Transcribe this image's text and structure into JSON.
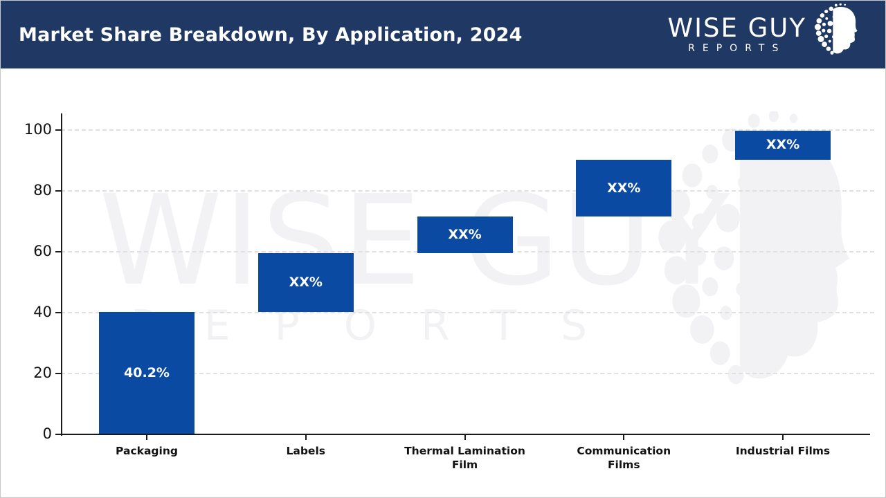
{
  "header": {
    "title": "Market Share Breakdown, By Application, 2024",
    "logo": {
      "line1": "WISE GUY",
      "line2": "REPORTS"
    }
  },
  "watermark": {
    "line1": "WISE GUY",
    "line2": "REPORTS"
  },
  "colors": {
    "header_bg": "#1f3864",
    "bar": "#0b4aa2",
    "bar_label": "#ffffff",
    "axis": "#1a1a1a",
    "grid": "#e0e0e0",
    "watermark": "#f2f2f4"
  },
  "chart_data": {
    "type": "bar",
    "subtype": "waterfall",
    "title": "Market Share Breakdown, By Application, 2024",
    "categories": [
      "Packaging",
      "Labels",
      "Thermal Lamination\nFilm",
      "Communication\nFilms",
      "Industrial Films"
    ],
    "segments": [
      [
        0,
        40.2
      ],
      [
        40.2,
        59.5
      ],
      [
        59.5,
        71.5
      ],
      [
        71.5,
        90.3
      ],
      [
        90.3,
        99.7
      ]
    ],
    "bar_labels": [
      "40.2%",
      "XX%",
      "XX%",
      "XX%",
      "XX%"
    ],
    "yticks": [
      0,
      20,
      40,
      60,
      80,
      100
    ],
    "ylim": [
      0,
      105
    ],
    "xlabel": "",
    "ylabel": "",
    "grid": "horizontal-dashed",
    "legend": "none"
  }
}
